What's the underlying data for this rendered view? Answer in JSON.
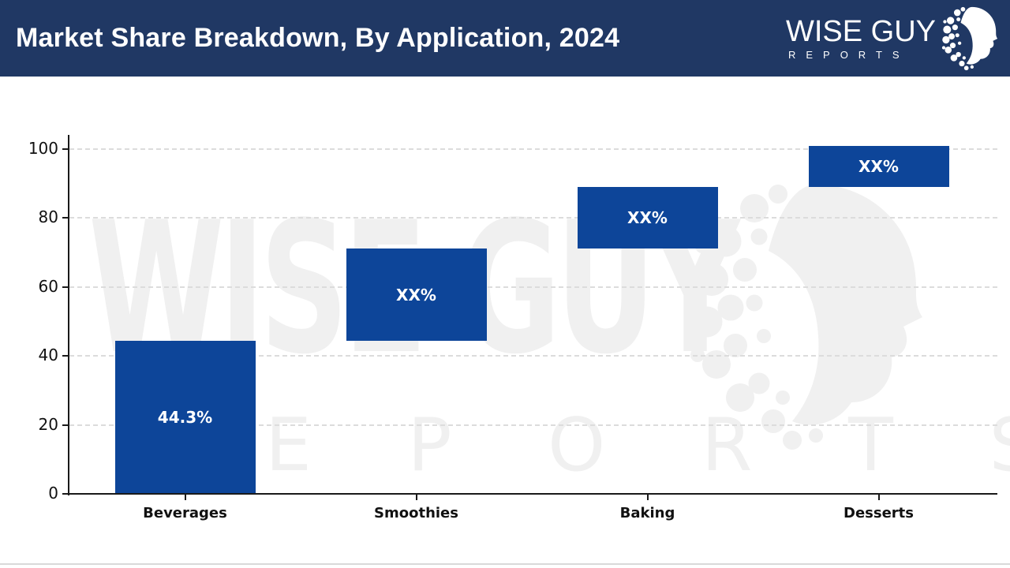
{
  "header": {
    "title": "Market Share Breakdown, By Application, 2024",
    "logo": {
      "line1": "WISE GUY",
      "line2": "REPORTS"
    }
  },
  "watermark": {
    "line1": "WISE GUY",
    "line2": "R E P O R T S"
  },
  "icons": {
    "logo_face": "dotted-head-profile",
    "watermark_face": "dotted-head-profile"
  },
  "colors": {
    "header_bg": "#203864",
    "bar": "#0d4599",
    "bar_label": "#ffffff",
    "grid": "#dcdcdc",
    "axis": "#1a1a1a",
    "tick_text": "#111111",
    "watermark": "#f0f0f0",
    "bottom_line": "#d9d9d9",
    "title_text": "#ffffff"
  },
  "chart_data": {
    "type": "bar",
    "subtype": "waterfall",
    "title": "Market Share Breakdown, By Application, 2024",
    "categories": [
      "Beverages",
      "Smoothies",
      "Baking",
      "Desserts"
    ],
    "segments": [
      {
        "category": "Beverages",
        "start": 0,
        "end": 44.3,
        "label": "44.3%"
      },
      {
        "category": "Smoothies",
        "start": 44.3,
        "end": 71.2,
        "label": "XX%"
      },
      {
        "category": "Baking",
        "start": 71.2,
        "end": 89.0,
        "label": "XX%"
      },
      {
        "category": "Desserts",
        "start": 89.0,
        "end": 100.9,
        "label": "XX%"
      }
    ],
    "y_ticks": [
      0,
      20,
      40,
      60,
      80,
      100
    ],
    "ylim": [
      0,
      104
    ],
    "xlabel": "",
    "ylabel": "",
    "grid": "horizontal-dashed",
    "legend": "none",
    "bar_color": "#0d4599",
    "label_color": "#ffffff"
  }
}
